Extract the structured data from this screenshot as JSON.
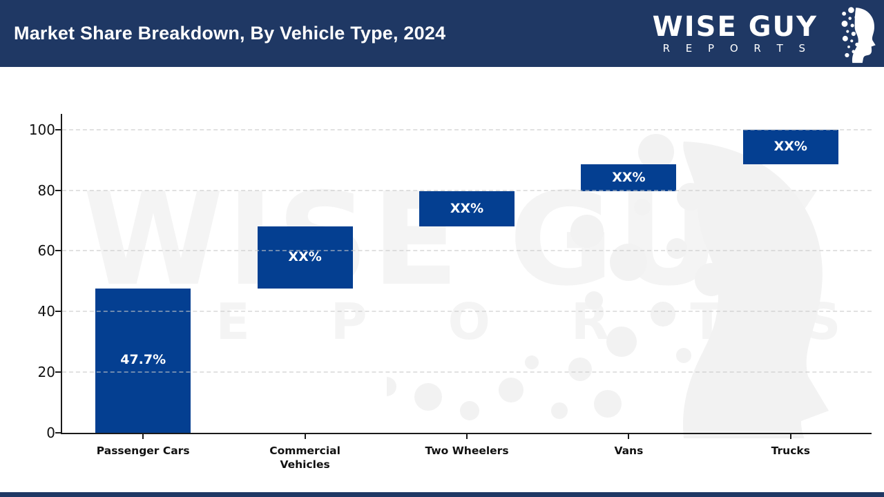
{
  "header": {
    "title": "Market Share Breakdown, By Vehicle Type, 2024",
    "logo": {
      "line1": "WISE GUY",
      "line2": "R E P O R T S"
    }
  },
  "watermark": {
    "line1": "WISE GUY",
    "line2": "R E P O R T S"
  },
  "chart_data": {
    "type": "bar",
    "subtype": "waterfall",
    "title": "Market Share Breakdown, By Vehicle Type, 2024",
    "categories": [
      "Passenger Cars",
      "Commercial Vehicles",
      "Two Wheelers",
      "Vans",
      "Trucks"
    ],
    "bars": [
      {
        "category": "Passenger Cars",
        "start": 0,
        "end": 47.7,
        "segment_value": 47.7,
        "label": "47.7%"
      },
      {
        "category": "Commercial Vehicles",
        "start": 47.7,
        "end": 68.0,
        "segment_value": 20.3,
        "label": "XX%"
      },
      {
        "category": "Two Wheelers",
        "start": 68.0,
        "end": 79.7,
        "segment_value": 11.7,
        "label": "XX%"
      },
      {
        "category": "Vans",
        "start": 79.7,
        "end": 88.5,
        "segment_value": 8.8,
        "label": "XX%"
      },
      {
        "category": "Trucks",
        "start": 88.5,
        "end": 100.0,
        "segment_value": 11.5,
        "label": "XX%"
      }
    ],
    "ylim": [
      0,
      100
    ],
    "yticks": [
      0,
      20,
      40,
      60,
      80,
      100
    ],
    "xlabel": "",
    "ylabel": "",
    "grid": "horizontal-dashed",
    "legend": "none",
    "colors": {
      "bar": "#043F91",
      "header_bg": "#1F3864",
      "grid": "#DCDCDC",
      "axis": "#1A1A1A",
      "value_label": "#FFFFFF",
      "watermark": "#F2F2F2"
    }
  }
}
